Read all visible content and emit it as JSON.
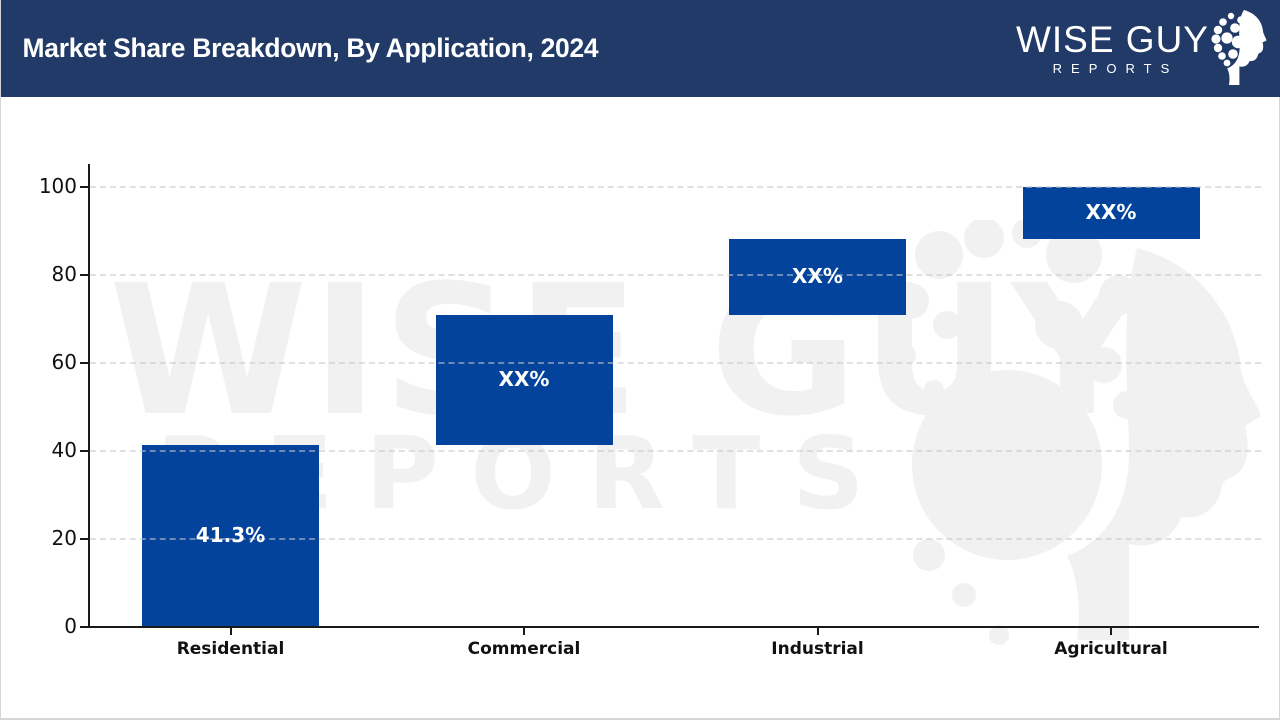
{
  "header": {
    "title": "Market Share Breakdown, By Application, 2024",
    "bg_color": "#213a68",
    "logo": {
      "line1": "WISE GUY",
      "line2": "REPORTS"
    }
  },
  "watermark": {
    "line1": "WISE GUY",
    "line2": "REPORTS",
    "color": "#f1f1f1"
  },
  "chart_data": {
    "type": "bar",
    "subtype": "waterfall",
    "title": "Market Share Breakdown, By Application, 2024",
    "categories": [
      "Residential",
      "Commercial",
      "Industrial",
      "Agricultural"
    ],
    "segments": [
      {
        "category": "Residential",
        "start": 0,
        "end": 41.3,
        "label": "41.3%"
      },
      {
        "category": "Commercial",
        "start": 41.3,
        "end": 70.9,
        "label": "XX%"
      },
      {
        "category": "Industrial",
        "start": 70.9,
        "end": 88.1,
        "label": "XX%"
      },
      {
        "category": "Agricultural",
        "start": 88.1,
        "end": 100,
        "label": "XX%"
      }
    ],
    "xlabel": "",
    "ylabel": "",
    "ylim": [
      0,
      100
    ],
    "yticks": [
      0,
      20,
      40,
      60,
      80,
      100
    ],
    "grid": "horizontal-dashed",
    "legend": "none",
    "bar_color": "#04439b",
    "bar_label_color": "#ffffff"
  }
}
